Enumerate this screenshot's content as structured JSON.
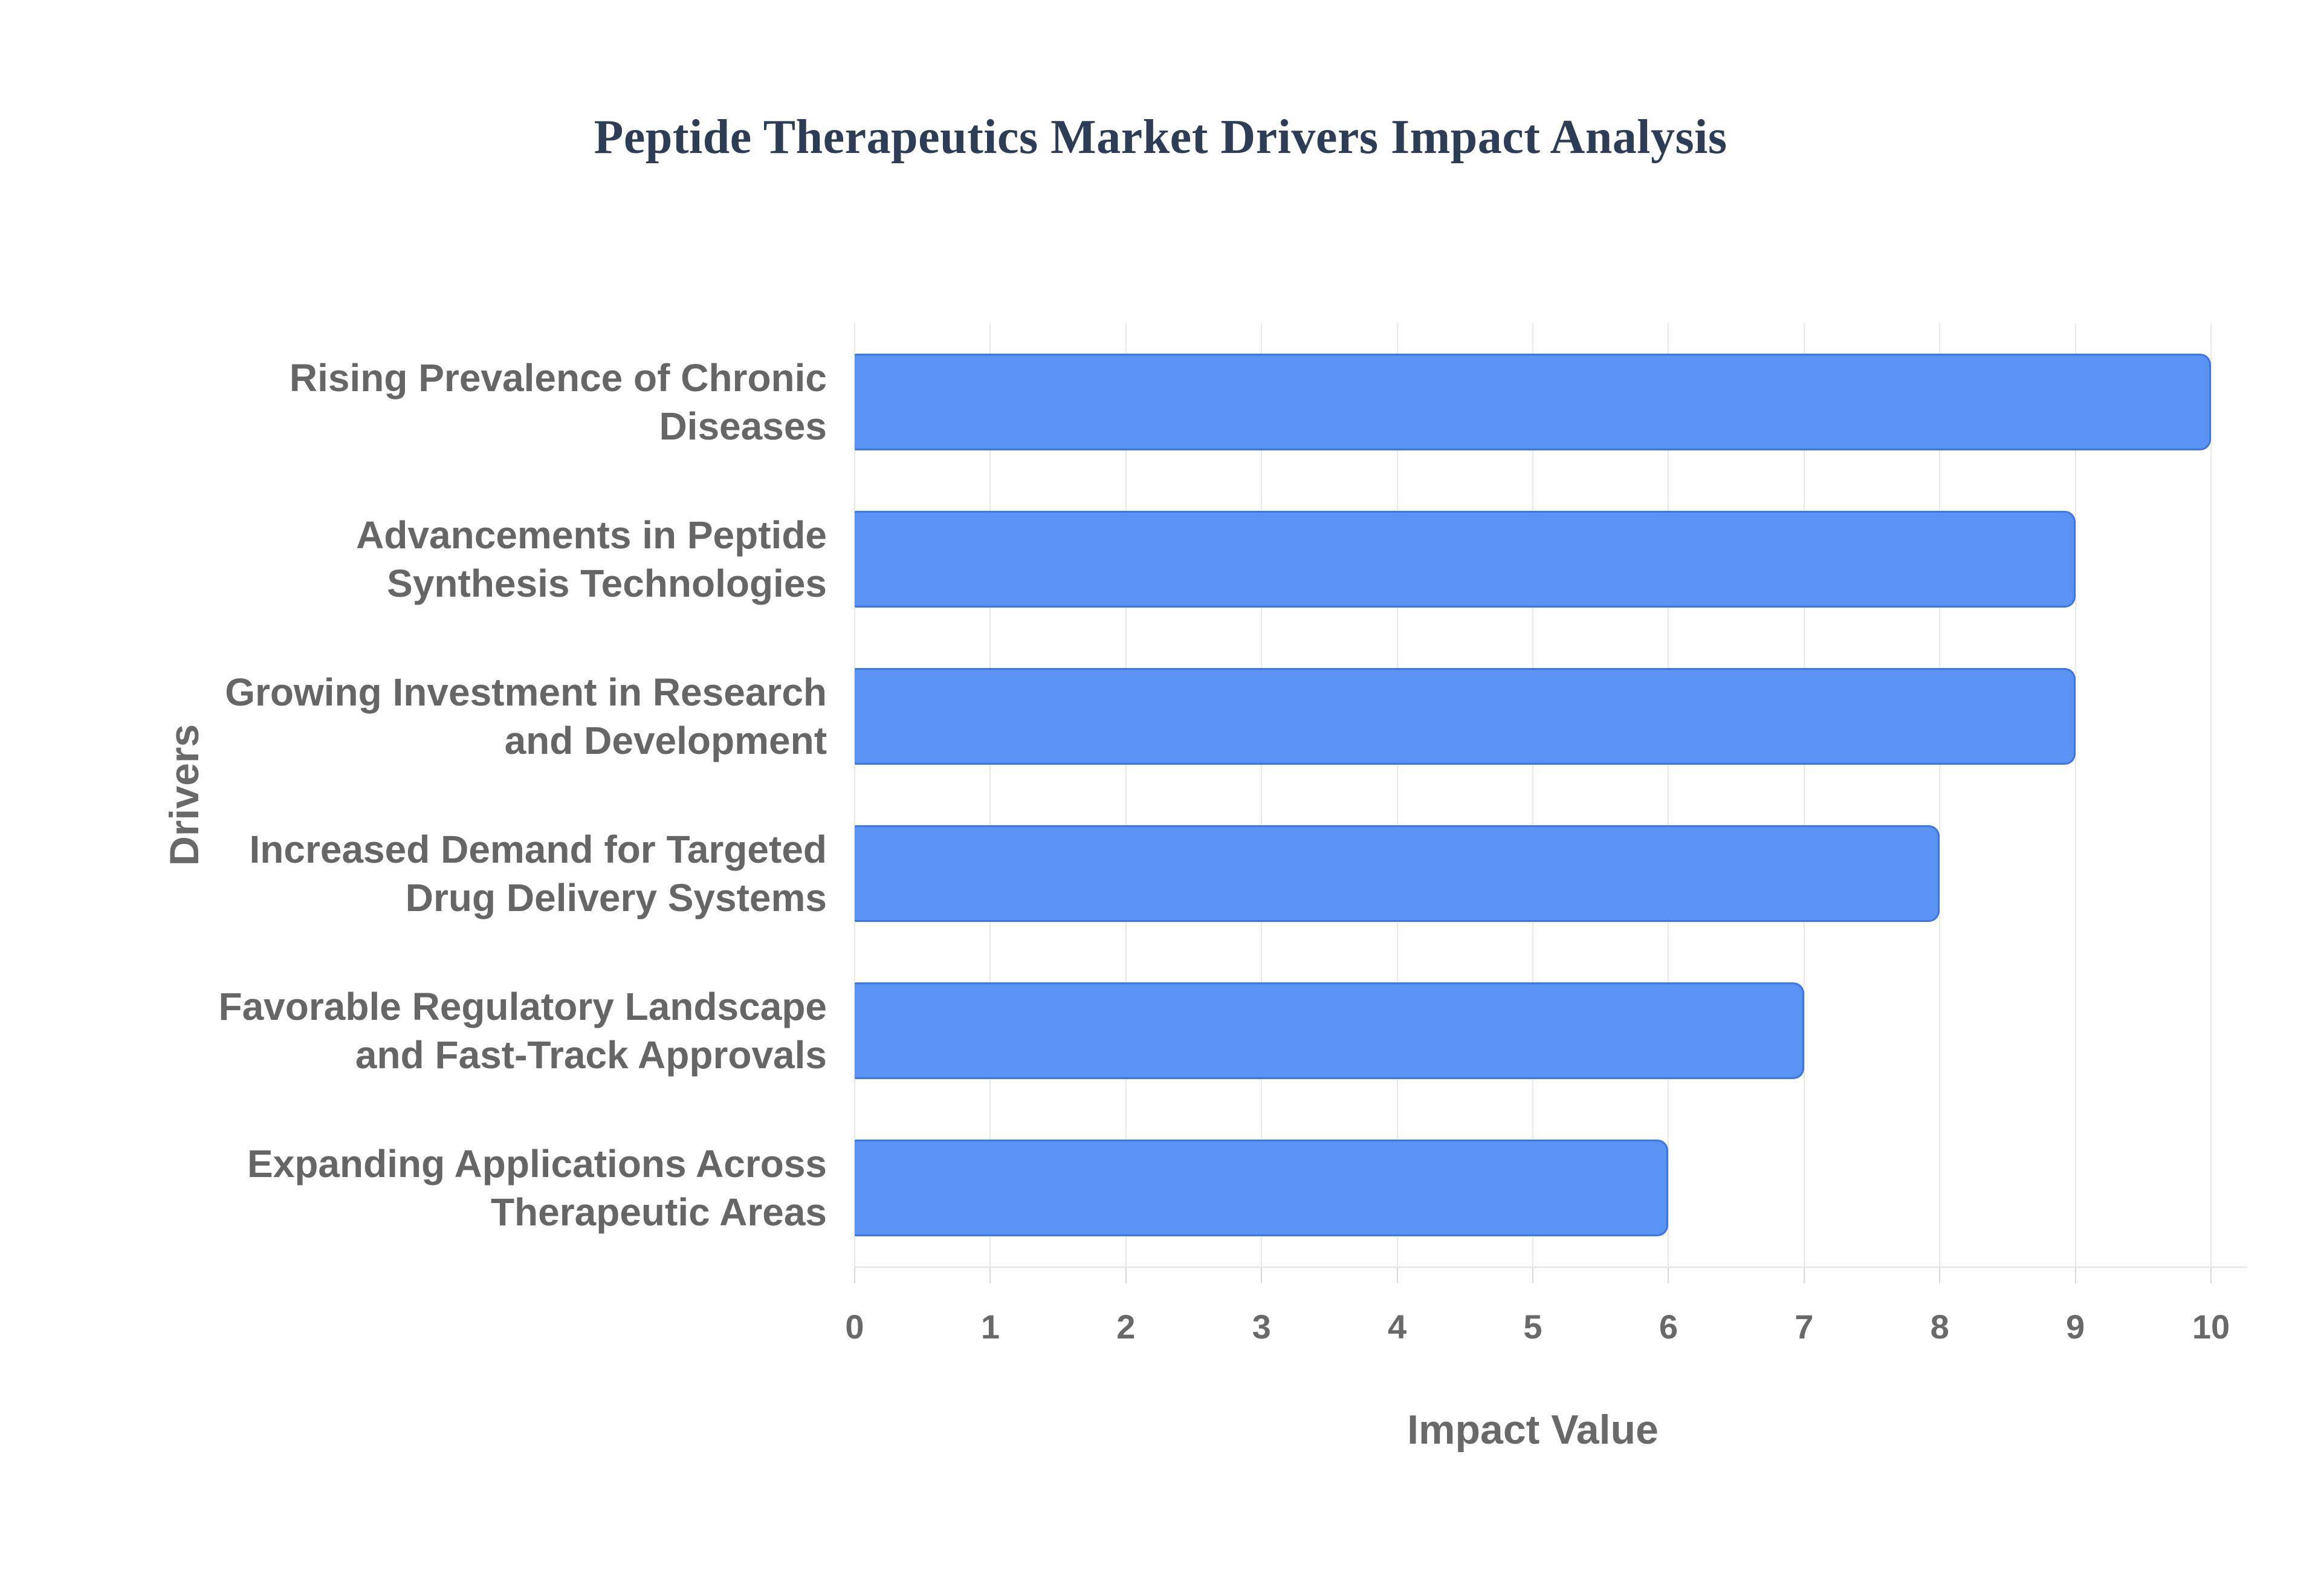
{
  "title": "Peptide Therapeutics Market Drivers Impact Analysis",
  "chart_data": {
    "type": "bar",
    "orientation": "horizontal",
    "title": "Peptide Therapeutics Market Drivers Impact Analysis",
    "xlabel": "Impact Value",
    "ylabel": "Drivers",
    "categories": [
      "Rising Prevalence of Chronic Diseases",
      "Advancements in Peptide Synthesis Technologies",
      "Growing Investment in Research and Development",
      "Increased Demand for Targeted Drug Delivery Systems",
      "Favorable Regulatory Landscape and Fast-Track Approvals",
      "Expanding Applications Across Therapeutic Areas"
    ],
    "values": [
      10,
      9,
      9,
      8,
      7,
      6
    ],
    "xlim": [
      0,
      10
    ],
    "xticks": [
      0,
      1,
      2,
      3,
      4,
      5,
      6,
      7,
      8,
      9,
      10
    ],
    "grid": true,
    "legend": "none",
    "bar_fill_color": "#5b93f3",
    "bar_border_color": "#3a76e8",
    "gridline_color": "#e8e8e8",
    "title_color": "#2c3d55",
    "axis_text_color": "#696969",
    "category_label_color": "#666666",
    "background_color": "#ffffff"
  }
}
